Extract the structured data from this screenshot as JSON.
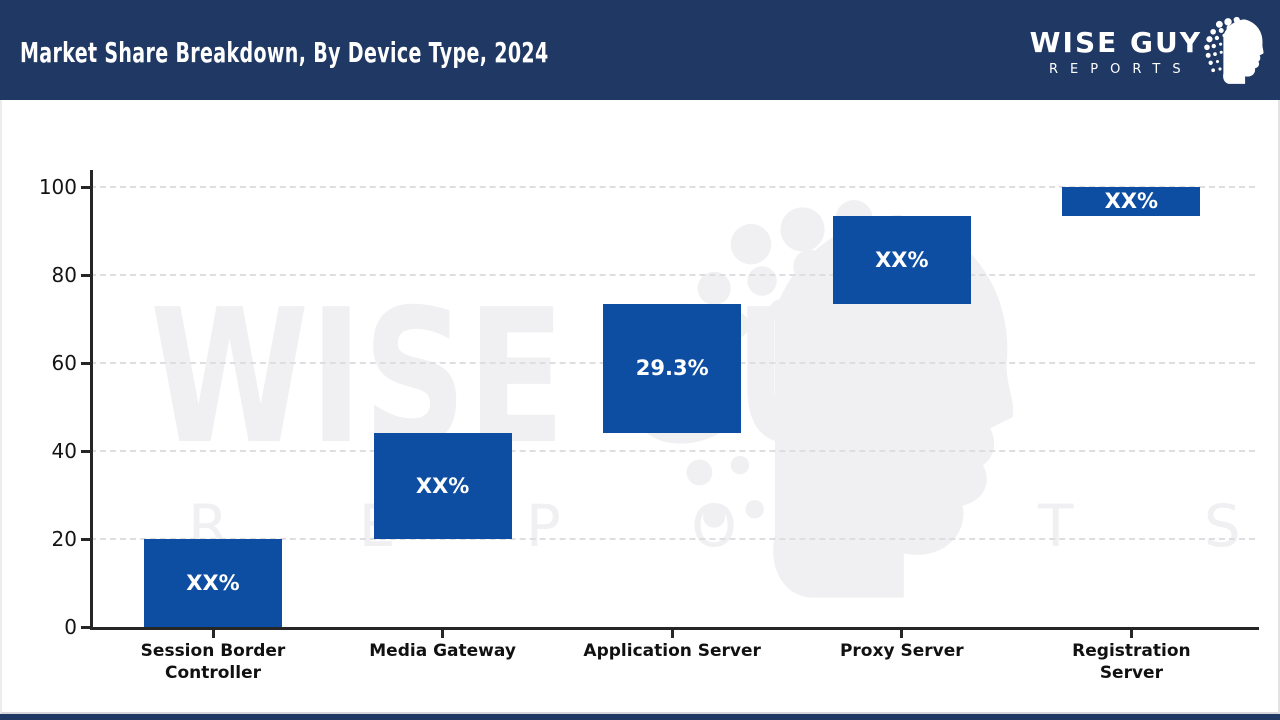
{
  "header": {
    "title": "Market Share Breakdown, By Device Type, 2024",
    "logo": {
      "line1": "WISE GUY",
      "line2": "REPORTS"
    },
    "bg_color": "#1f3864",
    "text_color": "#ffffff"
  },
  "watermark": {
    "line1": "WISE GUY",
    "line2": "R E P O R T S",
    "color": "#f0f0f2"
  },
  "footer": {
    "bg_color": "#1f3864"
  },
  "colors": {
    "bar": "#0d4da2",
    "axis": "#262626",
    "grid": "#dedee0",
    "tick_text": "#141414",
    "category_text": "#111111",
    "bar_label_text": "#ffffff"
  },
  "chart_data": {
    "type": "bar",
    "subtype": "waterfall",
    "title": "Market Share Breakdown, By Device Type, 2024",
    "xlabel": "",
    "ylabel": "",
    "ylim": [
      0,
      100
    ],
    "yticks": [
      0,
      20,
      40,
      60,
      80,
      100
    ],
    "grid": "horizontal-dashed",
    "legend": "none",
    "bar_color": "#0d4da2",
    "categories": [
      "Session Border Controller",
      "Media Gateway",
      "Application Server",
      "Proxy Server",
      "Registration Server"
    ],
    "segments": [
      {
        "category": "Session Border Controller",
        "display": "Session Border\nController",
        "start": 0,
        "end": 20,
        "value": 20,
        "label": "XX%"
      },
      {
        "category": "Media Gateway",
        "display": "Media Gateway",
        "start": 20,
        "end": 44.1,
        "value": 24.1,
        "label": "XX%"
      },
      {
        "category": "Application Server",
        "display": "Application Server",
        "start": 44.1,
        "end": 73.4,
        "value": 29.3,
        "label": "29.3%"
      },
      {
        "category": "Proxy Server",
        "display": "Proxy Server",
        "start": 73.4,
        "end": 93.5,
        "value": 20.1,
        "label": "XX%"
      },
      {
        "category": "Registration Server",
        "display": "Registration\nServer",
        "start": 93.5,
        "end": 100,
        "value": 6.5,
        "label": "XX%"
      }
    ]
  }
}
